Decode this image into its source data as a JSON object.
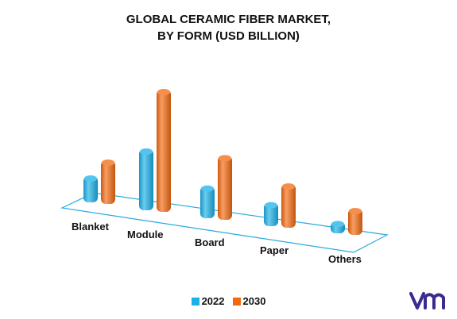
{
  "title_line1": "GLOBAL CERAMIC FIBER MARKET,",
  "title_line2": "BY FORM (USD BILLION)",
  "colors": {
    "series_2022": "#1ab0e8",
    "series_2030": "#f26a10",
    "axis_plane": "#2aa9e0"
  },
  "legend": [
    {
      "label": "2022",
      "color": "#1ab0e8"
    },
    {
      "label": "2030",
      "color": "#f26a10"
    }
  ],
  "chart_data": {
    "type": "bar",
    "style": "3d-cylinder",
    "categories": [
      "Blanket",
      "Module",
      "Board",
      "Paper",
      "Others"
    ],
    "series": [
      {
        "name": "2022",
        "values": [
          0.9,
          2.1,
          1.1,
          0.8,
          0.4
        ]
      },
      {
        "name": "2030",
        "values": [
          1.5,
          4.2,
          2.2,
          1.5,
          0.9
        ]
      }
    ],
    "title": "GLOBAL CERAMIC FIBER MARKET, BY FORM (USD BILLION)",
    "xlabel": "",
    "ylabel": "",
    "ylim": [
      0,
      4.5
    ],
    "grid": false,
    "legend_position": "bottom"
  }
}
